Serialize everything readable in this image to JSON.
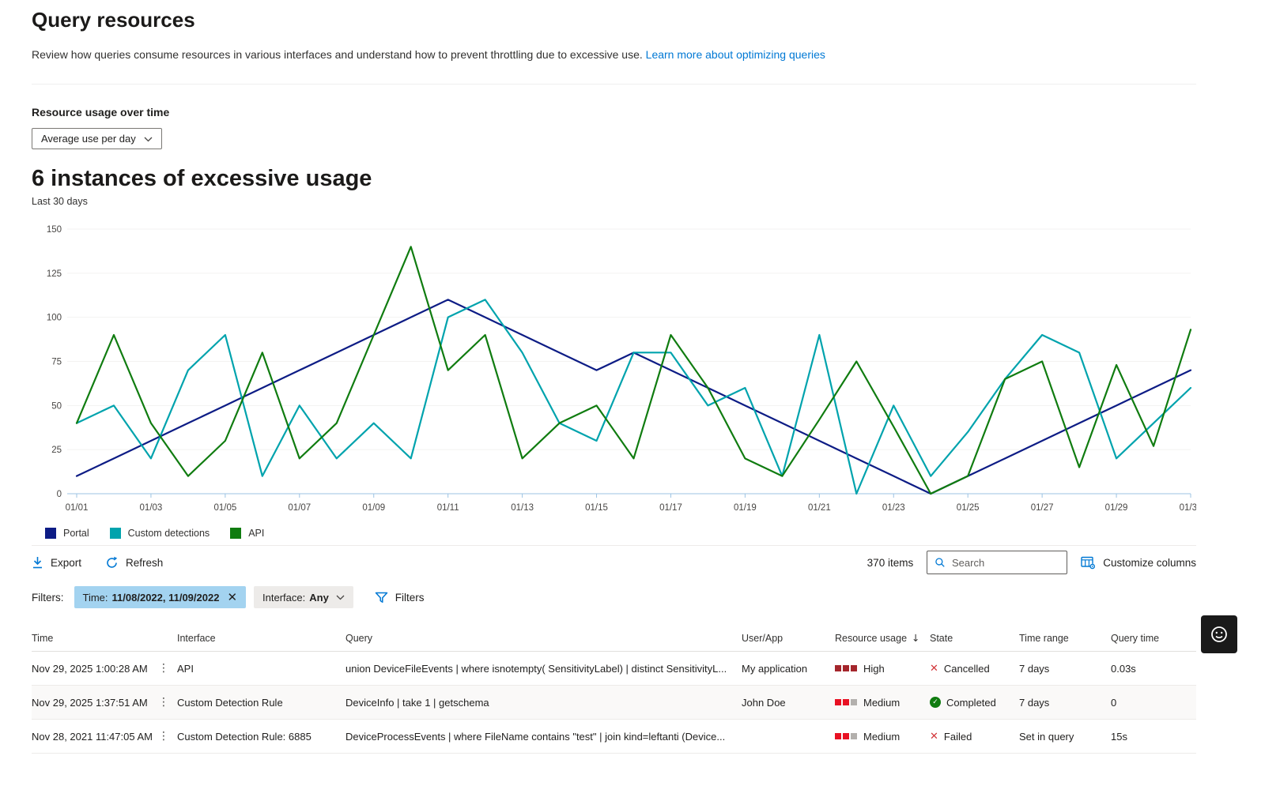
{
  "page": {
    "title": "Query resources",
    "description": "Review how queries consume resources in various interfaces and understand how to prevent throttling due to excessive use.",
    "learn_more_link": "Learn more about optimizing queries"
  },
  "usage_section": {
    "label": "Resource usage over time",
    "dropdown_value": "Average use per day",
    "heading": "6 instances of excessive usage",
    "subheading": "Last 30 days"
  },
  "chart_data": {
    "type": "line",
    "title": "6 instances of excessive usage",
    "subtitle": "Last 30 days",
    "x_tick_labels": [
      "01/01",
      "01/03",
      "01/05",
      "01/07",
      "01/09",
      "01/11",
      "01/13",
      "01/15",
      "01/17",
      "01/19",
      "01/21",
      "01/23",
      "01/25",
      "01/27",
      "01/29",
      "01/31"
    ],
    "y_ticks": [
      0,
      25,
      50,
      75,
      100,
      125,
      150
    ],
    "ylim": [
      0,
      150
    ],
    "grid": "horizontal",
    "legend_position": "bottom",
    "axis_color": "#9cc3e3",
    "grid_color": "#f3f2f1",
    "tick_text_color": "#484644",
    "series": [
      {
        "name": "Portal",
        "color": "#0d1c85",
        "values": [
          10,
          20,
          30,
          40,
          50,
          60,
          70,
          80,
          90,
          100,
          110,
          100,
          90,
          80,
          70,
          80,
          70,
          60,
          50,
          40,
          30,
          20,
          10,
          0,
          10,
          20,
          30,
          40,
          50,
          60,
          70
        ]
      },
      {
        "name": "Custom detections",
        "color": "#00a3ad",
        "values": [
          40,
          50,
          20,
          70,
          90,
          10,
          50,
          20,
          40,
          20,
          100,
          110,
          80,
          40,
          30,
          80,
          80,
          50,
          60,
          10,
          90,
          0,
          50,
          10,
          35,
          65,
          90,
          80,
          20,
          40,
          60
        ]
      },
      {
        "name": "API",
        "color": "#107c10",
        "values": [
          40,
          90,
          40,
          10,
          30,
          80,
          20,
          40,
          90,
          140,
          70,
          90,
          20,
          40,
          50,
          20,
          90,
          60,
          20,
          10,
          42,
          75,
          38,
          0,
          10,
          65,
          75,
          15,
          73,
          27,
          93
        ]
      }
    ]
  },
  "toolbar": {
    "export_label": "Export",
    "refresh_label": "Refresh",
    "items_count": "370 items",
    "search_placeholder": "Search",
    "customize_label": "Customize columns"
  },
  "filters": {
    "label": "Filters:",
    "time_chip": {
      "prefix": "Time:",
      "value": "11/08/2022, 11/09/2022"
    },
    "interface_chip": {
      "prefix": "Interface:",
      "value": "Any"
    },
    "filters_button": "Filters"
  },
  "icons": {
    "more": "⋮",
    "close": "✕",
    "sort_desc": "↓",
    "check": "✓",
    "cross": "✕"
  },
  "colors": {
    "accent": "#0078d4",
    "usage_high": "#a4262c",
    "usage_medium": "#e81123",
    "usage_empty": "#b3b0ad",
    "state_completed": "#107c10",
    "state_failed": "#d13438"
  },
  "table": {
    "columns": [
      {
        "label": "Time"
      },
      {
        "label": "Interface"
      },
      {
        "label": "Query"
      },
      {
        "label": "User/App"
      },
      {
        "label": "Resource usage",
        "sort": "desc"
      },
      {
        "label": "State"
      },
      {
        "label": "Time range"
      },
      {
        "label": "Query time"
      }
    ],
    "rows": [
      {
        "time": "Nov 29, 2025 1:00:28 AM",
        "interface": "API",
        "query": "union DeviceFileEvents | where isnotempty( SensitivityLabel) | distinct SensitivityL...",
        "user": "My application",
        "usage": "High",
        "usage_filled": 3,
        "usage_color": "#a4262c",
        "state": "Cancelled",
        "state_kind": "cancelled",
        "time_range": "7 days",
        "query_time": "0.03s"
      },
      {
        "time": "Nov 29, 2025 1:37:51 AM",
        "interface": "Custom Detection Rule",
        "query": "DeviceInfo | take 1 | getschema",
        "user": "John Doe",
        "usage": "Medium",
        "usage_filled": 2,
        "usage_color": "#e81123",
        "state": "Completed",
        "state_kind": "completed",
        "time_range": "7 days",
        "query_time": "0"
      },
      {
        "time": "Nov 28, 2021 11:47:05 AM",
        "interface": "Custom Detection Rule: 6885",
        "query": "DeviceProcessEvents | where FileName contains \"test\" | join kind=leftanti (Device...",
        "user": "",
        "usage": "Medium",
        "usage_filled": 2,
        "usage_color": "#e81123",
        "state": "Failed",
        "state_kind": "failed",
        "time_range": "Set in query",
        "query_time": "15s"
      }
    ]
  }
}
